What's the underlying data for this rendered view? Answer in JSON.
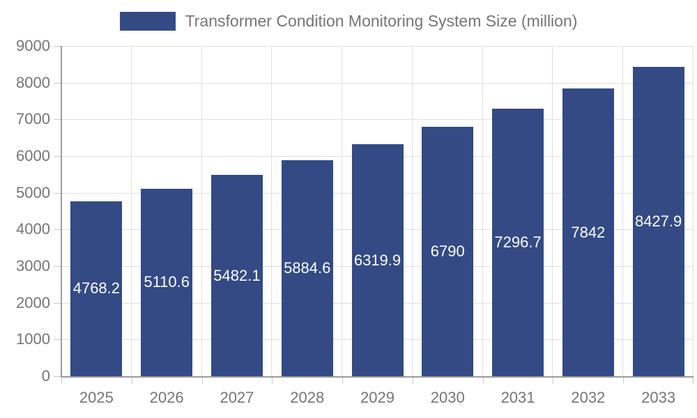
{
  "chart_data": {
    "type": "bar",
    "title": "Transformer Condition Monitoring System Size (million)",
    "categories": [
      "2025",
      "2026",
      "2027",
      "2028",
      "2029",
      "2030",
      "2031",
      "2032",
      "2033"
    ],
    "values": [
      4768.2,
      5110.6,
      5482.1,
      5884.6,
      6319.9,
      6790,
      7296.7,
      7842,
      8427.9
    ],
    "value_labels": [
      "4768.2",
      "5110.6",
      "5482.1",
      "5884.6",
      "6319.9",
      "6790",
      "7296.7",
      "7842",
      "8427.9"
    ],
    "xlabel": "",
    "ylabel": "",
    "ylim": [
      0,
      9000
    ],
    "ytick_step": 1000,
    "ytick_labels": [
      "0",
      "1000",
      "2000",
      "3000",
      "4000",
      "5000",
      "6000",
      "7000",
      "8000",
      "9000"
    ],
    "grid": true,
    "legend_position": "top",
    "colors": {
      "bar": "#334a85",
      "value_label": "#ffffff",
      "axis_text": "#757575",
      "grid": "#e0e0e0",
      "axis_line": "#9b9b9b",
      "tick": "#c9c9c9",
      "background": "#ffffff"
    }
  }
}
